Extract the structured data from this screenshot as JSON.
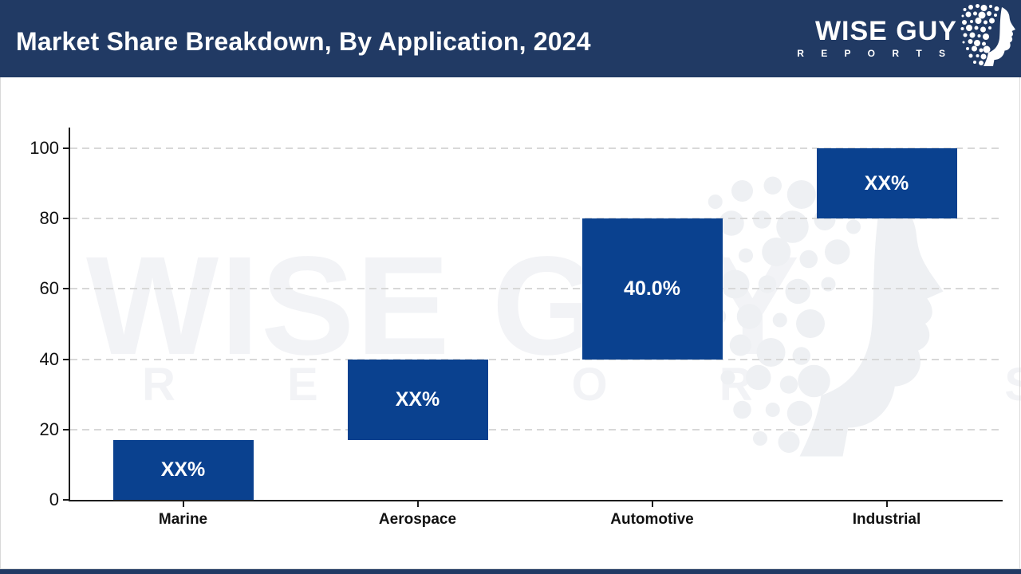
{
  "header": {
    "title": "Market Share Breakdown, By Application, 2024",
    "bg_color": "#213A64",
    "logo": {
      "name": "WISE GUY",
      "tagline": "R E P O R T S"
    }
  },
  "watermark": {
    "line1": "WISE GUY",
    "line2": "R E P O R T S"
  },
  "chart_data": {
    "type": "bar",
    "subtype": "waterfall",
    "title": "Market Share Breakdown, By Application, 2024",
    "categories": [
      "Marine",
      "Aerospace",
      "Automotive",
      "Industrial"
    ],
    "bars": [
      {
        "category": "Marine",
        "start": 0,
        "end": 17,
        "label": "XX%"
      },
      {
        "category": "Aerospace",
        "start": 17,
        "end": 40,
        "label": "XX%"
      },
      {
        "category": "Automotive",
        "start": 40,
        "end": 80,
        "label": "40.0%"
      },
      {
        "category": "Industrial",
        "start": 80,
        "end": 100,
        "label": "XX%"
      }
    ],
    "ylim": [
      0,
      100
    ],
    "yticks": [
      0,
      20,
      40,
      60,
      80,
      100
    ],
    "xlabel": "",
    "ylabel": "",
    "grid": "horizontal-dashed",
    "legend": "none",
    "bar_color": "#0A418F",
    "bar_label_color": "#ffffff",
    "gridline_color": "#d8d8d8"
  }
}
